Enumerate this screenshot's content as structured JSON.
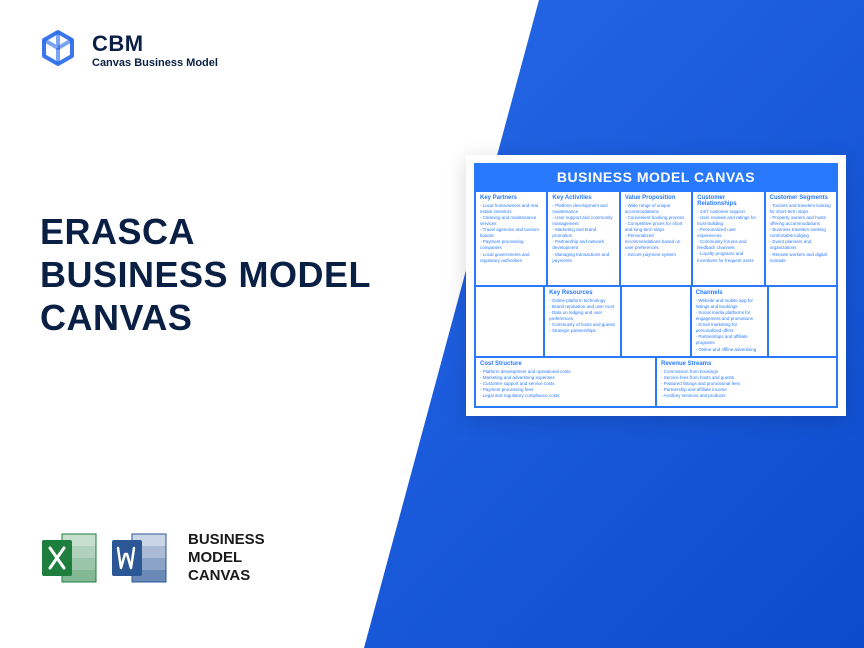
{
  "logo": {
    "title": "CBM",
    "subtitle": "Canvas Business Model"
  },
  "heading": {
    "line1": "ERASCA",
    "line2": "BUSINESS MODEL",
    "line3": "CANVAS"
  },
  "bottom_label": {
    "l1": "BUSINESS",
    "l2": "MODEL",
    "l3": "CANVAS"
  },
  "colors": {
    "primary_blue": "#2979ff",
    "dark_text": "#0a1f44",
    "gradient_start": "#2668e8",
    "gradient_end": "#0c4bcc",
    "excel_green": "#1e7e3e",
    "excel_dark": "#0d5c2a",
    "word_blue": "#2b5797",
    "word_dark": "#1e3f6f"
  },
  "canvas": {
    "title": "BUSINESS MODEL CANVAS",
    "cells": {
      "key_partners": {
        "label": "Key Partners",
        "items": [
          "Local homeowners and real estate investors",
          "Cleaning and maintenance services",
          "Travel agencies and tourism boards",
          "Payment processing companies",
          "Local governments and regulatory authorities"
        ]
      },
      "key_activities": {
        "label": "Key Activities",
        "items": [
          "Platform development and maintenance",
          "User support and community management",
          "Marketing and brand promotion",
          "Partnership and network development",
          "Managing transactions and payments"
        ]
      },
      "value_proposition": {
        "label": "Value Proposition",
        "items": [
          "Wide range of unique accommodations",
          "Convenient booking process",
          "Competitive prices for short and long-term stays",
          "Personalized recommendations based on user preferences",
          "Secure payment system"
        ]
      },
      "customer_relationships": {
        "label": "Customer Relationships",
        "items": [
          "24/7 customer support",
          "User reviews and ratings for trust-building",
          "Personalized user experiences",
          "Community forums and feedback channels",
          "Loyalty programs and incentives for frequent users"
        ]
      },
      "customer_segments": {
        "label": "Customer Segments",
        "items": [
          "Tourists and travelers looking for short-term stays",
          "Property owners and hosts offering accommodations",
          "Business travelers seeking comfortable lodging",
          "Event planners and organizations",
          "Remote workers and digital nomads"
        ]
      },
      "key_resources": {
        "label": "Key Resources",
        "items": [
          "Online platform technology",
          "Brand reputation and user trust",
          "Data on lodging and user preferences",
          "Community of hosts and guests",
          "Strategic partnerships"
        ]
      },
      "channels": {
        "label": "Channels",
        "items": [
          "Website and mobile app for listings and bookings",
          "Social media platforms for engagement and promotions",
          "Email marketing for personalized offers",
          "Partnerships and affiliate programs",
          "Online and offline advertising"
        ]
      },
      "cost_structure": {
        "label": "Cost Structure",
        "items": [
          "Platform development and operational costs",
          "Marketing and advertising expenses",
          "Customer support and service costs",
          "Payment processing fees",
          "Legal and regulatory compliance costs"
        ]
      },
      "revenue_streams": {
        "label": "Revenue Streams",
        "items": [
          "Commission from bookings",
          "Service fees from hosts and guests",
          "Featured listings and promotional fees",
          "Partnership and affiliate income",
          "Ancillary services and products"
        ]
      }
    }
  }
}
